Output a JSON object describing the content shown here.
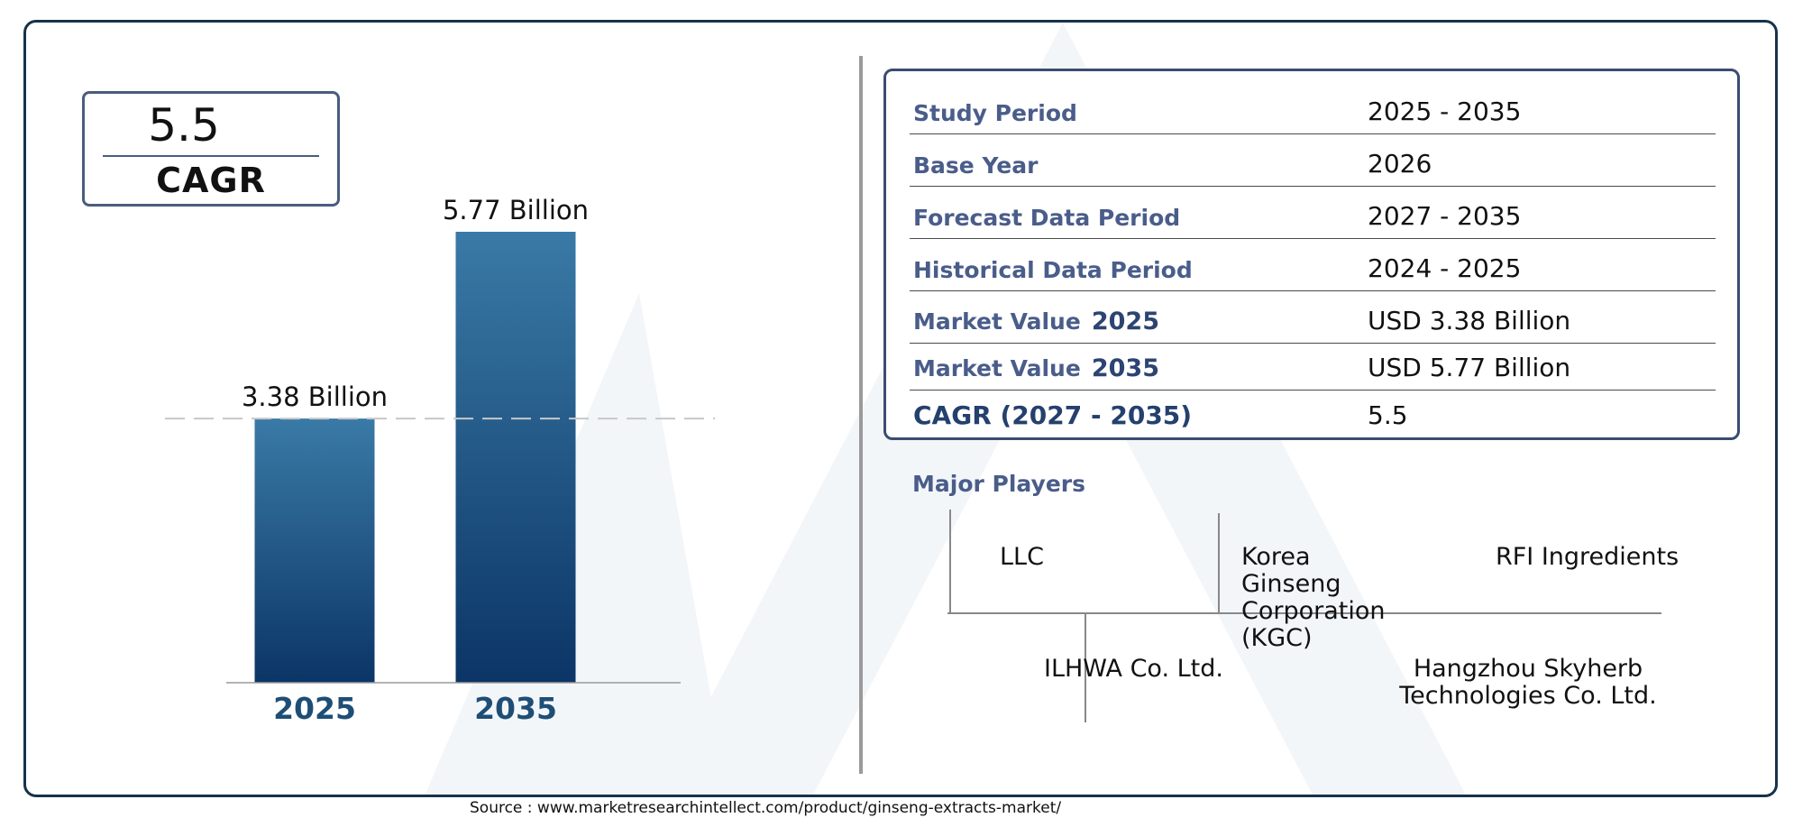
{
  "cagr_box": {
    "value": "5.5",
    "label": "CAGR"
  },
  "chart_data": {
    "type": "bar",
    "categories": [
      "2025",
      "2035"
    ],
    "values": [
      3.38,
      5.77
    ],
    "data_labels": [
      "3.38 Billion",
      "5.77 Billion"
    ],
    "title": "",
    "xlabel": "",
    "ylabel": "",
    "ylim": [
      0,
      5.77
    ],
    "grid": false,
    "reference_line_value": 3.38,
    "colors": {
      "bar_top": "#3a7aa6",
      "bar_bottom": "#0b3566",
      "tick_label": "#1e4e76"
    }
  },
  "info_table": {
    "rows": [
      {
        "label": "Study Period",
        "year": "",
        "value": "2025 - 2035"
      },
      {
        "label": "Base Year",
        "year": "",
        "value": "2026"
      },
      {
        "label": "Forecast Data Period",
        "year": "",
        "value": "2027 - 2035"
      },
      {
        "label": "Historical Data Period",
        "year": "",
        "value": "2024 - 2025"
      },
      {
        "label": "Market Value",
        "year": "2025",
        "value": "USD 3.38 Billion"
      },
      {
        "label": "Market Value",
        "year": "2035",
        "value": "USD 5.77 Billion"
      },
      {
        "label": "CAGR (2027 - 2035)",
        "year": "",
        "value": "5.5"
      }
    ]
  },
  "major_players": {
    "title": "Major Players",
    "players": [
      "LLC",
      "Korea Ginseng Corporation (KGC)",
      "RFI Ingredients",
      "ILHWA Co. Ltd.",
      "Hangzhou Skyherb Technologies Co. Ltd."
    ]
  },
  "source": "Source : www.marketresearchintellect.com/product/ginseng-extracts-market/",
  "colors": {
    "frame": "#16324a",
    "label_blue": "#4a5d8a"
  }
}
